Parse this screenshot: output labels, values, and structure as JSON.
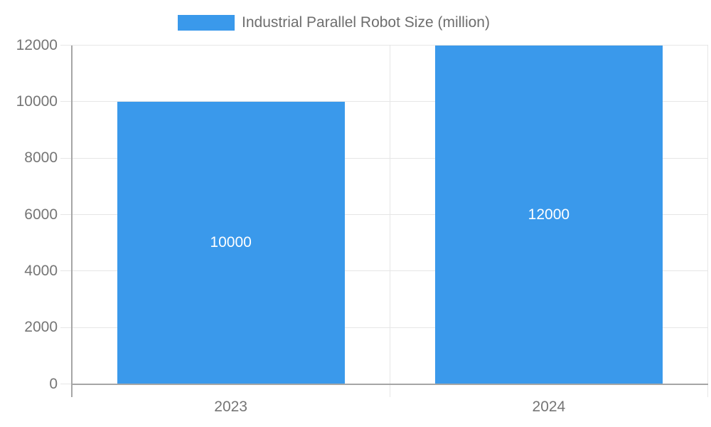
{
  "chart_data": {
    "type": "bar",
    "title": "Industrial Parallel Robot Size (million)",
    "categories": [
      "2023",
      "2024"
    ],
    "values": [
      10000,
      12000
    ],
    "series": [
      {
        "name": "Industrial Parallel Robot Size (million)",
        "values": [
          10000,
          12000
        ]
      }
    ],
    "bar_labels": [
      "10000",
      "12000"
    ],
    "xlabel": "",
    "ylabel": "",
    "yticks": [
      0,
      2000,
      4000,
      6000,
      8000,
      10000,
      12000
    ],
    "ylim": [
      0,
      12000
    ],
    "grid": true,
    "legend_position": "top",
    "colors": {
      "bar": "#3a99eb",
      "bar_label": "#ffffff",
      "axis_line": "#a6a6a6",
      "gridline": "#e6e6e6",
      "tick_label": "#757575",
      "legend_text": "#6e6e6e",
      "background": "#ffffff"
    }
  }
}
